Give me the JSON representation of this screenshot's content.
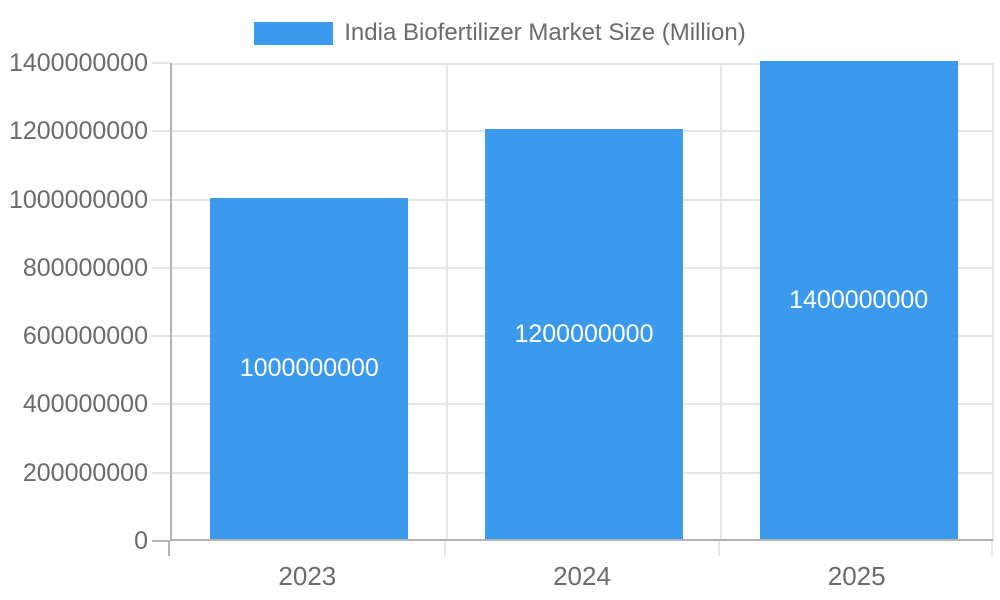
{
  "legend": {
    "label": "India Biofertilizer Market Size (Million)",
    "swatch_color": "#3b9aed"
  },
  "chart_data": {
    "type": "bar",
    "title": "India Biofertilizer Market Size (Million)",
    "categories": [
      "2023",
      "2024",
      "2025"
    ],
    "series": [
      {
        "name": "India Biofertilizer Market Size (Million)",
        "values": [
          1000000000,
          1200000000,
          1400000000
        ]
      }
    ],
    "bar_labels": [
      "1000000000",
      "1200000000",
      "1400000000"
    ],
    "xlabel": "",
    "ylabel": "",
    "ylim": [
      0,
      1400000000
    ],
    "ytick_step": 200000000,
    "ytick_labels": [
      "0",
      "200000000",
      "400000000",
      "600000000",
      "800000000",
      "1000000000",
      "1200000000",
      "1400000000"
    ],
    "grid": true,
    "legend_position": "top",
    "colors": {
      "bar": "#3b9aed",
      "grid_light": "#e6e6e6",
      "axis_dark": "#b3b3b3",
      "tick_text": "#6b6b6b",
      "bar_label_text": "#ffffff",
      "background": "#ffffff"
    }
  }
}
